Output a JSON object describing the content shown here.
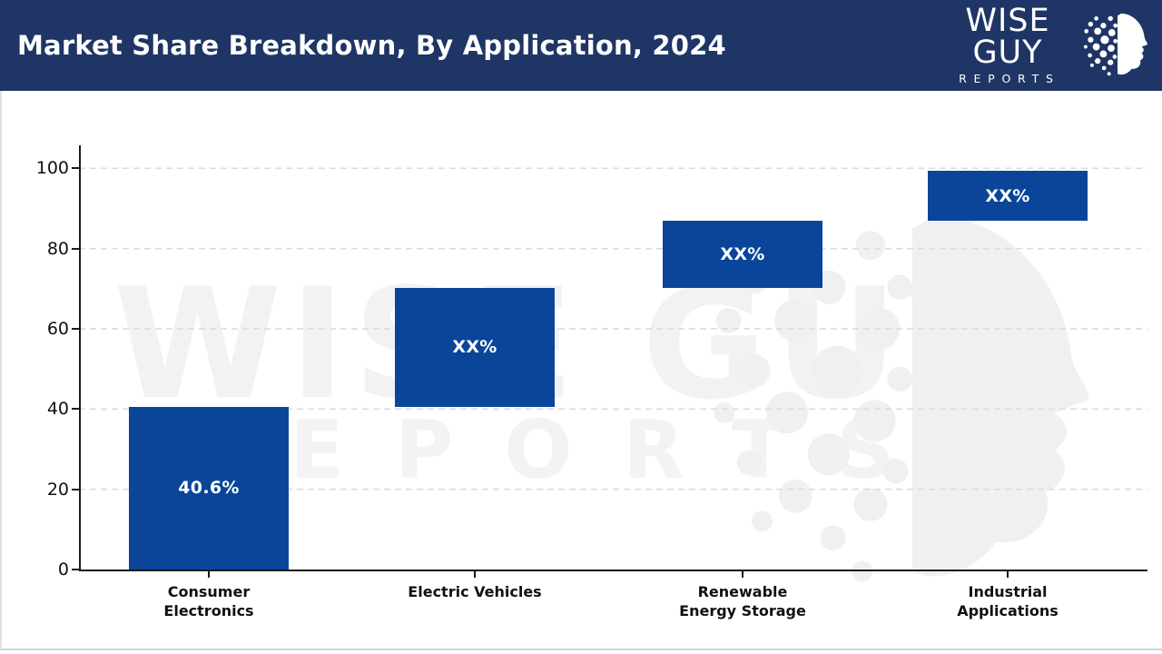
{
  "header": {
    "title": "Market Share Breakdown, By Application, 2024",
    "bg_color": "#1f3565",
    "logo": {
      "line1": "WISE GUY",
      "line2": "REPORTS"
    }
  },
  "watermark": {
    "line1": "WISE GUY",
    "line2": "REPORTS"
  },
  "chart_data": {
    "type": "bar",
    "subtype": "waterfall-floating-segments",
    "title": "Market Share Breakdown, By Application, 2024",
    "categories": [
      "Consumer Electronics",
      "Electric Vehicles",
      "Renewable Energy Storage",
      "Industrial Applications"
    ],
    "bars": [
      {
        "category": "Consumer Electronics",
        "start": 0,
        "end": 40.6,
        "label": "40.6%"
      },
      {
        "category": "Electric Vehicles",
        "start": 40.6,
        "end": 70.2,
        "label": "XX%"
      },
      {
        "category": "Renewable Energy Storage",
        "start": 70.2,
        "end": 86.9,
        "label": "XX%"
      },
      {
        "category": "Industrial Applications",
        "start": 86.9,
        "end": 99.4,
        "label": "XX%"
      }
    ],
    "yticks": [
      0,
      20,
      40,
      60,
      80,
      100
    ],
    "ylim": [
      0,
      106
    ],
    "xlabel": "",
    "ylabel": "",
    "grid": true,
    "gridline_style": "dashed",
    "legend": false,
    "bar_color": "#0a459a",
    "bar_label_color": "#ffffff",
    "axis_color": "#1a1a1a",
    "grid_color": "#dcdcdc"
  }
}
